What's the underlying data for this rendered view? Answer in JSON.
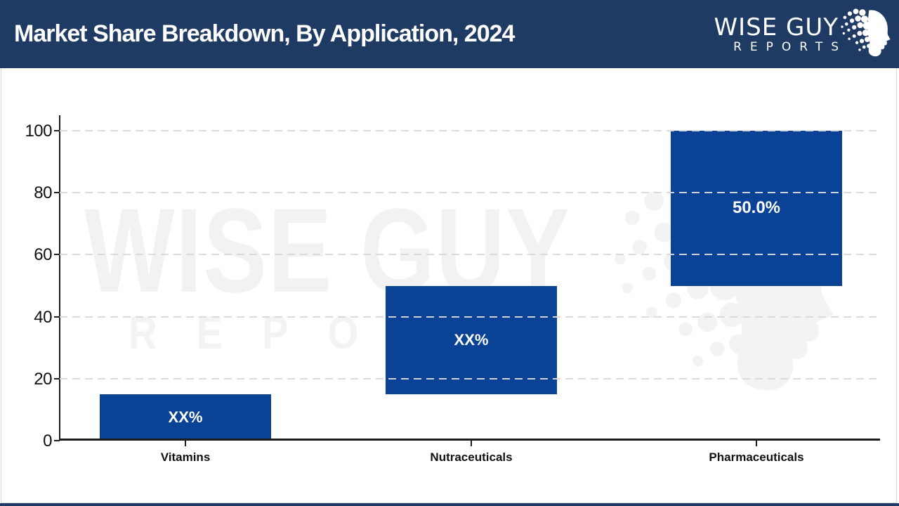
{
  "header": {
    "title": "Market Share Breakdown, By Application, 2024",
    "brand": {
      "line1": "WISE GUY",
      "line2": "REPORTS"
    }
  },
  "watermark": {
    "line1": "WISE GUY",
    "line2": "REPORTS"
  },
  "colors": {
    "header_bg": "#1f3a63",
    "footer_bg": "#1f3a63",
    "bar": "#0a4296",
    "bar_label": "#ffffff",
    "grid": "#d9d9d9",
    "axis": "#1c1c1c",
    "watermark": "#f2f2f2"
  },
  "chart_data": {
    "type": "bar",
    "subtype": "floating-range-columns (waterfall style)",
    "title": "Market Share Breakdown, By Application, 2024",
    "categories": [
      "Vitamins",
      "Nutraceuticals",
      "Pharmaceuticals"
    ],
    "bars": [
      {
        "category": "Vitamins",
        "from": 0,
        "to": 15,
        "label": "XX%"
      },
      {
        "category": "Nutraceuticals",
        "from": 15,
        "to": 50,
        "label": "XX%"
      },
      {
        "category": "Pharmaceuticals",
        "from": 50,
        "to": 100,
        "label": "50.0%"
      }
    ],
    "xlabel": "",
    "ylabel": "",
    "ylim": [
      0,
      100
    ],
    "yticks": [
      0,
      20,
      40,
      60,
      80,
      100
    ],
    "grid": {
      "axis": "y",
      "style": "dashed"
    },
    "legend": "none"
  }
}
